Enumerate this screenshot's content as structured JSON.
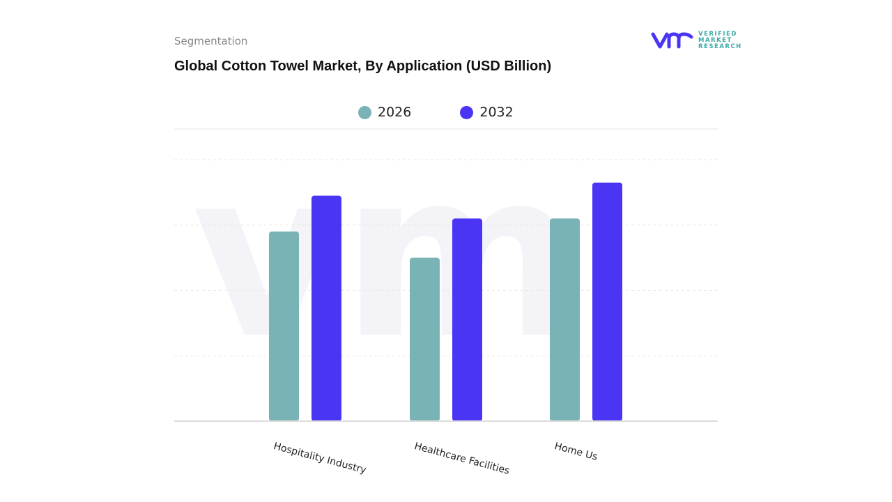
{
  "header": {
    "segment": "Segmentation",
    "title": "Global Cotton Towel Market, By Application (USD Billion)"
  },
  "logo": {
    "text_line1": "VERIFIED",
    "text_line2": "MARKET",
    "text_line3": "RESEARCH",
    "mark": "vmr"
  },
  "chart_data": {
    "type": "bar",
    "title": "Global Cotton Towel Market, By Application (USD Billion)",
    "categories": [
      "Hospitality Industry",
      "Healthcare Facilities",
      "Home Us"
    ],
    "series": [
      {
        "name": "2026",
        "color": "#7ab3b6",
        "values": [
          2.9,
          2.5,
          3.1
        ]
      },
      {
        "name": "2032",
        "color": "#4b35f5",
        "values": [
          3.45,
          3.1,
          3.65
        ]
      }
    ],
    "xlabel": "",
    "ylabel": "",
    "ylim": [
      0,
      4
    ],
    "grid": true,
    "legend": "top"
  }
}
